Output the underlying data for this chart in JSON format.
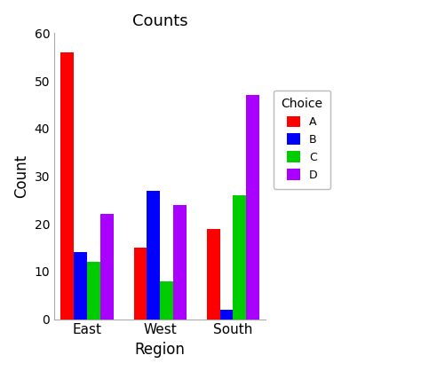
{
  "title": "Counts",
  "xlabel": "Region",
  "ylabel": "Count",
  "regions": [
    "East",
    "West",
    "South"
  ],
  "choices": [
    "A",
    "B",
    "C",
    "D"
  ],
  "values": {
    "A": [
      56,
      15,
      19
    ],
    "B": [
      14,
      27,
      2
    ],
    "C": [
      12,
      8,
      26
    ],
    "D": [
      22,
      24,
      47
    ]
  },
  "colors": {
    "A": "#FF0000",
    "B": "#0000FF",
    "C": "#00CC00",
    "D": "#AA00FF"
  },
  "ylim": [
    0,
    60
  ],
  "yticks": [
    0,
    10,
    20,
    30,
    40,
    50,
    60
  ],
  "legend_title": "Choice",
  "bar_width": 0.18,
  "background_color": "#FFFFFF"
}
